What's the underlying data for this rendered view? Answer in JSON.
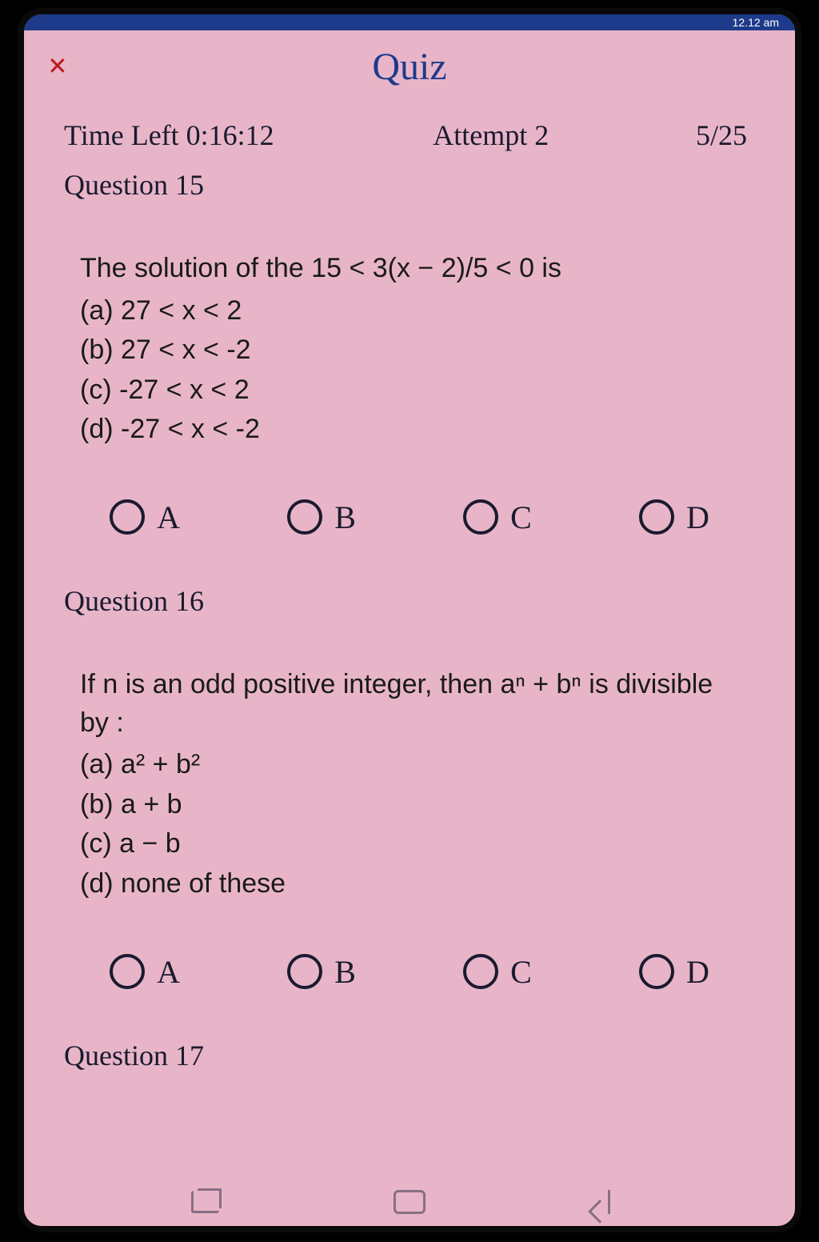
{
  "status_bar": {
    "text": "12.12 am"
  },
  "header": {
    "title": "Quiz",
    "close_symbol": "×"
  },
  "info": {
    "time_left_label": "Time Left",
    "time_left_value": "0:16:12",
    "attempt_label": "Attempt",
    "attempt_value": "2",
    "progress": "5/25"
  },
  "questions": [
    {
      "label": "Question 15",
      "text": "The solution of the 15 < 3(x − 2)/5 < 0 is",
      "options": [
        "(a) 27 < x < 2",
        "(b) 27 < x < -2",
        "(c) -27 < x < 2",
        "(d) -27 < x < -2"
      ]
    },
    {
      "label": "Question 16",
      "text_html": "If n is an odd positive integer, then a<sup>n</sup> + b<sup>n</sup> is divisible by :",
      "text": "If n is an odd positive integer, then aⁿ + bⁿ is divisible by :",
      "options": [
        "(a) a² + b²",
        "(b) a + b",
        "(c) a − b",
        "(d) none of these"
      ]
    },
    {
      "label": "Question 17"
    }
  ],
  "answer_labels": [
    "A",
    "B",
    "C",
    "D"
  ],
  "colors": {
    "background": "#e8b5c8",
    "accent_blue": "#1e3a8a",
    "close_red": "#b91c1c",
    "text_dark": "#1a1a2e",
    "frame": "#0a0a0a"
  }
}
